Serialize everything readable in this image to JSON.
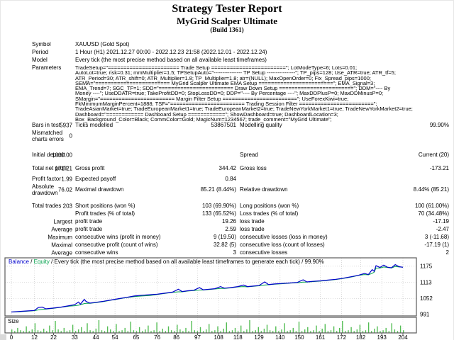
{
  "report": {
    "title": "Strategy Tester Report",
    "subtitle": "MyGrid Scalper Ultimate",
    "build": "(Build 1361)"
  },
  "info_rows": [
    {
      "label": "Symbol",
      "value": "XAUUSD (Gold Spot)"
    },
    {
      "label": "Period",
      "value": "1 Hour (H1) 2021.12.27 00:00 - 2022.12.23 21:58 (2022.12.01 - 2022.12.24)"
    },
    {
      "label": "Model",
      "value": "Every tick (the most precise method based on all available least timeframes)"
    },
    {
      "label": "Parameters",
      "value": "TradeSetup=\"======================= Trade Setup ========================\"; LotModeType=6; Lots=0.01;\nAutoLot=true; risk=0.31; mmMultiplier=1.5; TPSetupAuto=\"---------------- TP Setup ----------------\"; TP_pips=128; Use_ATR=true; ATR_tf=5;\nATR_Period=30; ATR_shift=0; ATR_Multiplier=1.8; TP_Multiplier=1.8; atr=(NULL); MaxOpenOrder=0; Fix_Spread_pips=1000;\nSEMA=\"======================== MyGrid Scalper Ultimate EMA Setup ========================\"; EMA_Signal=3;\nEMA_Trend=7; SGC_TF=1; SDD=\"======================== Draw Down Setup ========================\"; DDM=\"---- By\nMoney ----\"; UseDDATR=true; TakeProfitDD=0; StopLossDD=0; DDP=\"---- By Percentage ----\"; MaxDDPlusP=0; MaxDDMinusP=0;\nSMargin=\"======================== Margin Filter Setup ========================\"; UseForexKiwi=true;\nFkMinimumMarginPercent=1888; TSF=\"======================== Trading Session Filter ========================\";\nTradeAsianMarket=true; TradeEuropeanMarket1=true; TradeEuropeanMarket2=true; TradeNewYorkMarket1=true; TradeNewYorkMarket2=true;\nDashboard=\"============ Dashboard Setup ============\"; ShowDashboard=true; DashboardLocation=3;\nBox_Background_Color=Black; CommColor=Gold; MagicNum=1234567; trade_comment=\"MyGrid Ultimate\";"
    }
  ],
  "stat_rows": [
    {
      "c": [
        "Bars in test",
        "5937",
        "Ticks modelled",
        "53867501",
        "Modelling quality",
        "99.90%"
      ],
      "tall": false,
      "gap": false
    },
    {
      "c": [
        "Mismatched charts errors",
        "0",
        "",
        "",
        "",
        ""
      ],
      "tall": true,
      "gap": false
    },
    {
      "c": [
        "Initial deposit",
        "1000.00",
        "",
        "",
        "Spread",
        "Current (20)"
      ],
      "tall": true,
      "gap": true
    },
    {
      "c": [
        "Total net profit",
        "171.21",
        "Gross profit",
        "344.42",
        "Gross loss",
        "-173.21"
      ],
      "tall": true,
      "gap": false
    },
    {
      "c": [
        "Profit factor",
        "1.99",
        "Expected payoff",
        "0.84",
        "",
        ""
      ],
      "tall": false,
      "gap": false
    },
    {
      "c": [
        "Absolute drawdown",
        "76.02",
        "Maximal drawdown",
        "85.21 (8.44%)",
        "Relative drawdown",
        "8.44% (85.21)"
      ],
      "tall": true,
      "gap": false
    },
    {
      "c": [
        "Total trades",
        "203",
        "Short positions (won %)",
        "103 (69.90%)",
        "Long positions (won %)",
        "100 (61.00%)"
      ],
      "tall": false,
      "gap": true
    },
    {
      "c": [
        "",
        "",
        "Profit trades (% of total)",
        "133 (65.52%)",
        "Loss trades (% of total)",
        "70 (34.48%)"
      ],
      "tall": false,
      "gap": false
    },
    {
      "c": [
        "",
        "Largest",
        "profit trade",
        "19.26",
        "loss trade",
        "-17.19"
      ],
      "tall": false,
      "gap": false
    },
    {
      "c": [
        "",
        "Average",
        "profit trade",
        "2.59",
        "loss trade",
        "-2.47"
      ],
      "tall": false,
      "gap": false
    },
    {
      "c": [
        "",
        "Maximum",
        "consecutive wins (profit in money)",
        "9 (19.50)",
        "consecutive losses (loss in money)",
        "3 (-11.68)"
      ],
      "tall": false,
      "gap": false
    },
    {
      "c": [
        "",
        "Maximal",
        "consecutive profit (count of wins)",
        "32.82 (5)",
        "consecutive loss (count of losses)",
        "-17.19 (1)"
      ],
      "tall": false,
      "gap": false
    },
    {
      "c": [
        "",
        "Average",
        "consecutive wins",
        "3",
        "consecutive losses",
        "2"
      ],
      "tall": false,
      "gap": false
    }
  ],
  "chart_data": {
    "type": "line",
    "legend": {
      "balance_label": "Balance",
      "separator": " / ",
      "equity_label": "Equity",
      "suffix": " / Every tick (the most precise method based on all available least timeframes to generate each tick) / 99.90%"
    },
    "size_label": "Size",
    "x_ticks": [
      0,
      12,
      22,
      33,
      44,
      54,
      65,
      76,
      86,
      97,
      108,
      118,
      129,
      140,
      150,
      161,
      172,
      182,
      193,
      204
    ],
    "y_ticks": [
      1175,
      1113,
      1052,
      991
    ],
    "x_range": [
      0,
      204
    ],
    "y_range": [
      991,
      1175
    ],
    "grid": true,
    "colors": {
      "balance": "#0000cc",
      "equity": "#00a14b",
      "bars": "#54bd54",
      "grid": "#c9c9c9",
      "grid_light": "#dedede",
      "border": "#5a5a5a"
    },
    "series": [
      {
        "name": "Balance",
        "points": [
          [
            0,
            1000
          ],
          [
            4,
            1002
          ],
          [
            8,
            1004
          ],
          [
            12,
            1006
          ],
          [
            14,
            1017
          ],
          [
            16,
            1019
          ],
          [
            18,
            1012
          ],
          [
            22,
            1015
          ],
          [
            26,
            1019
          ],
          [
            30,
            1024
          ],
          [
            33,
            1028
          ],
          [
            35,
            1038
          ],
          [
            36,
            1030
          ],
          [
            38,
            1048
          ],
          [
            39,
            1040
          ],
          [
            41,
            1034
          ],
          [
            44,
            1037
          ],
          [
            48,
            1041
          ],
          [
            52,
            1046
          ],
          [
            56,
            1051
          ],
          [
            60,
            1056
          ],
          [
            64,
            1061
          ],
          [
            68,
            1064
          ],
          [
            72,
            1066
          ],
          [
            76,
            1068
          ],
          [
            80,
            1072
          ],
          [
            84,
            1076
          ],
          [
            87,
            1087
          ],
          [
            89,
            1078
          ],
          [
            92,
            1081
          ],
          [
            95,
            1083
          ],
          [
            98,
            1093
          ],
          [
            100,
            1085
          ],
          [
            103,
            1087
          ],
          [
            106,
            1089
          ],
          [
            109,
            1097
          ],
          [
            111,
            1091
          ],
          [
            114,
            1093
          ],
          [
            118,
            1097
          ],
          [
            121,
            1103
          ],
          [
            123,
            1097
          ],
          [
            126,
            1099
          ],
          [
            129,
            1101
          ],
          [
            132,
            1115
          ],
          [
            134,
            1105
          ],
          [
            137,
            1107
          ],
          [
            141,
            1109
          ],
          [
            145,
            1111
          ],
          [
            149,
            1113
          ],
          [
            152,
            1123
          ],
          [
            154,
            1115
          ],
          [
            157,
            1117
          ],
          [
            161,
            1119
          ],
          [
            165,
            1122
          ],
          [
            169,
            1125
          ],
          [
            172,
            1128
          ],
          [
            175,
            1132
          ],
          [
            178,
            1136
          ],
          [
            181,
            1141
          ],
          [
            184,
            1147
          ],
          [
            186,
            1143
          ],
          [
            188,
            1162
          ],
          [
            189,
            1155
          ],
          [
            190,
            1177
          ],
          [
            192,
            1170
          ],
          [
            194,
            1179
          ],
          [
            196,
            1171
          ],
          [
            198,
            1169
          ],
          [
            200,
            1181
          ],
          [
            202,
            1173
          ],
          [
            204,
            1171
          ]
        ]
      },
      {
        "name": "Equity",
        "points": [
          [
            0,
            1000
          ],
          [
            4,
            1001
          ],
          [
            8,
            1003
          ],
          [
            12,
            1005
          ],
          [
            14,
            1008
          ],
          [
            16,
            1010
          ],
          [
            18,
            1011
          ],
          [
            22,
            1014
          ],
          [
            26,
            1018
          ],
          [
            30,
            1022
          ],
          [
            33,
            1024
          ],
          [
            35,
            1026
          ],
          [
            36,
            1028
          ],
          [
            38,
            1032
          ],
          [
            39,
            1033
          ],
          [
            41,
            1033
          ],
          [
            44,
            1036
          ],
          [
            48,
            1040
          ],
          [
            52,
            1045
          ],
          [
            56,
            1050
          ],
          [
            60,
            1055
          ],
          [
            64,
            1059
          ],
          [
            68,
            1061
          ],
          [
            72,
            1063
          ],
          [
            76,
            1067
          ],
          [
            80,
            1071
          ],
          [
            84,
            1075
          ],
          [
            87,
            1077
          ],
          [
            89,
            1077
          ],
          [
            92,
            1080
          ],
          [
            95,
            1082
          ],
          [
            98,
            1084
          ],
          [
            100,
            1084
          ],
          [
            103,
            1086
          ],
          [
            106,
            1088
          ],
          [
            109,
            1090
          ],
          [
            111,
            1090
          ],
          [
            114,
            1092
          ],
          [
            118,
            1096
          ],
          [
            121,
            1097
          ],
          [
            123,
            1096
          ],
          [
            126,
            1098
          ],
          [
            129,
            1100
          ],
          [
            132,
            1103
          ],
          [
            134,
            1104
          ],
          [
            137,
            1106
          ],
          [
            141,
            1108
          ],
          [
            145,
            1110
          ],
          [
            149,
            1112
          ],
          [
            152,
            1114
          ],
          [
            154,
            1114
          ],
          [
            157,
            1116
          ],
          [
            161,
            1118
          ],
          [
            165,
            1121
          ],
          [
            169,
            1124
          ],
          [
            172,
            1127
          ],
          [
            175,
            1131
          ],
          [
            178,
            1135
          ],
          [
            181,
            1140
          ],
          [
            184,
            1143
          ],
          [
            186,
            1142
          ],
          [
            188,
            1148
          ],
          [
            189,
            1152
          ],
          [
            190,
            1168
          ],
          [
            192,
            1168
          ],
          [
            194,
            1172
          ],
          [
            196,
            1170
          ],
          [
            198,
            1168
          ],
          [
            200,
            1174
          ],
          [
            202,
            1172
          ],
          [
            204,
            1171
          ]
        ]
      }
    ],
    "size_bars": [
      4,
      2,
      6,
      3,
      2,
      8,
      2,
      4,
      12,
      3,
      2,
      5,
      2,
      9,
      3,
      15,
      4,
      2,
      6,
      2,
      3,
      10,
      2,
      4,
      7,
      2,
      12,
      3,
      2,
      5,
      16,
      3,
      2,
      8,
      4,
      2,
      11,
      2,
      3,
      6,
      2,
      14,
      3,
      2,
      7,
      2,
      4,
      9,
      2,
      3,
      13,
      2,
      5,
      2,
      8,
      3,
      2,
      10,
      4,
      2,
      6,
      2,
      15,
      3,
      2,
      7,
      2,
      4,
      11,
      2,
      3,
      8,
      2,
      5,
      13,
      2,
      3,
      6,
      2,
      9,
      2,
      4,
      16,
      2,
      3,
      7,
      2,
      5,
      10,
      3,
      2,
      8,
      2,
      4,
      12,
      2,
      3,
      6,
      2,
      14,
      2,
      4,
      7,
      2,
      3,
      9,
      2,
      5,
      11,
      2,
      3,
      8,
      2,
      6,
      15,
      2,
      3,
      7,
      2,
      4,
      10,
      2,
      3,
      13,
      2,
      5,
      8,
      2,
      3,
      6,
      2,
      12,
      4,
      2,
      9,
      3
    ]
  }
}
